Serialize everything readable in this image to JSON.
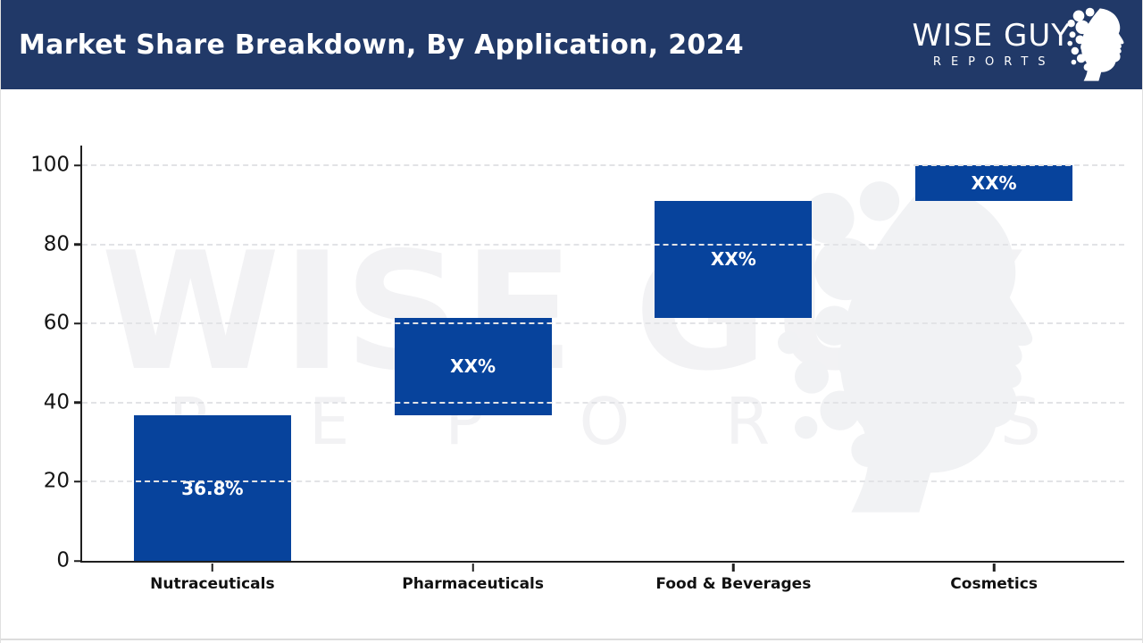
{
  "header": {
    "title": "Market Share Breakdown, By Application, 2024",
    "logo": {
      "line1": "WISE GUY",
      "line2": "REPORTS"
    }
  },
  "watermark": {
    "line1": "WISE GUY",
    "line2": "R E P O R T S"
  },
  "colors": {
    "header_bg": "#213968",
    "bar": "#07439c",
    "title_text": "#ffffff"
  },
  "chart_data": {
    "type": "bar",
    "subtype": "waterfall-stacked-breakdown",
    "title": "Market Share Breakdown, By Application, 2024",
    "xlabel": "",
    "ylabel": "",
    "categories": [
      "Nutraceuticals",
      "Pharmaceuticals",
      "Food & Beverages",
      "Cosmetics"
    ],
    "segments": [
      {
        "category": "Nutraceuticals",
        "start": 0,
        "end": 36.8,
        "value": 36.8,
        "label": "36.8%"
      },
      {
        "category": "Pharmaceuticals",
        "start": 36.8,
        "end": 61.5,
        "value": 24.7,
        "label": "XX%"
      },
      {
        "category": "Food & Beverages",
        "start": 61.5,
        "end": 91.1,
        "value": 29.6,
        "label": "XX%"
      },
      {
        "category": "Cosmetics",
        "start": 91.1,
        "end": 100,
        "value": 8.9,
        "label": "XX%"
      }
    ],
    "yticks": [
      0,
      20,
      40,
      60,
      80,
      100
    ],
    "ylim": [
      0,
      105
    ],
    "grid": true,
    "grid_style": "dashed",
    "bar_color": "#07439c",
    "label_color": "#ffffff",
    "legend": "none"
  }
}
